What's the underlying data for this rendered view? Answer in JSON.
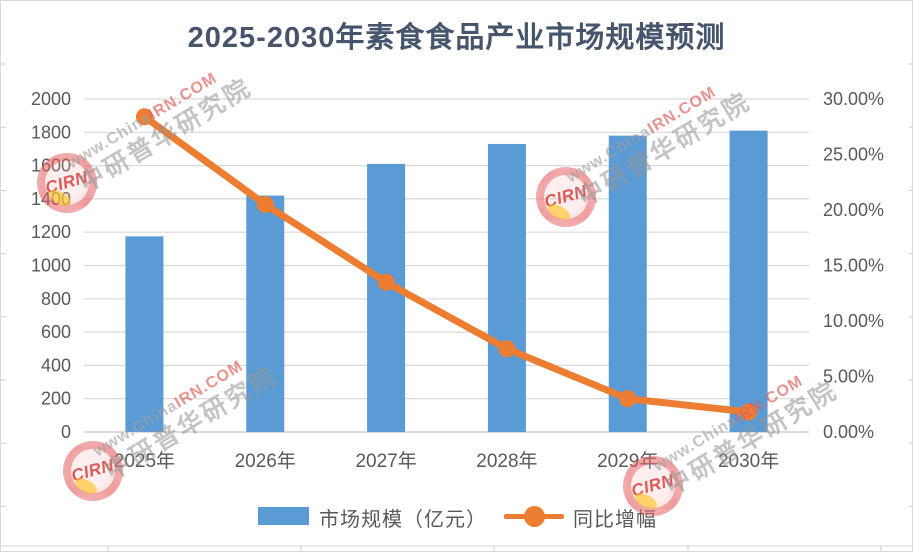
{
  "chart_data": {
    "type": "combo",
    "title": "2025-2030年素食食品产业市场规模预测",
    "categories": [
      "2025年",
      "2026年",
      "2027年",
      "2028年",
      "2029年",
      "2030年"
    ],
    "series": [
      {
        "name": "市场规模（亿元）",
        "type": "bar",
        "yaxis": "left",
        "color": "#5B9BD5",
        "values": [
          1175,
          1420,
          1610,
          1730,
          1780,
          1810
        ]
      },
      {
        "name": "同比增幅",
        "type": "line",
        "yaxis": "right",
        "color": "#ED7D31",
        "unit": "%",
        "values": [
          28.4,
          20.5,
          13.5,
          7.5,
          3.0,
          1.8
        ]
      }
    ],
    "left_axis": {
      "min": 0,
      "max": 2000,
      "step": 200,
      "ticks": [
        "2000",
        "1800",
        "1600",
        "1400",
        "1200",
        "1000",
        "800",
        "600",
        "400",
        "200",
        "0"
      ]
    },
    "right_axis": {
      "min": 0,
      "max": 30,
      "step": 5,
      "ticks": [
        "30.00%",
        "25.00%",
        "20.00%",
        "15.00%",
        "10.00%",
        "5.00%",
        "0.00%"
      ]
    },
    "grid": true,
    "legend_position": "bottom"
  },
  "watermark": {
    "url_gray": "www.China",
    "url_red": "IRN.COM",
    "org": "中研普华研究院",
    "logo": "CIRN"
  },
  "colors": {
    "bar": "#5B9BD5",
    "line": "#ED7D31",
    "grid": "#D9D9D9",
    "baseline": "#C6C6C6",
    "axis_text": "#595959",
    "title_text": "#46556b",
    "frame": "#D9D9D9"
  }
}
